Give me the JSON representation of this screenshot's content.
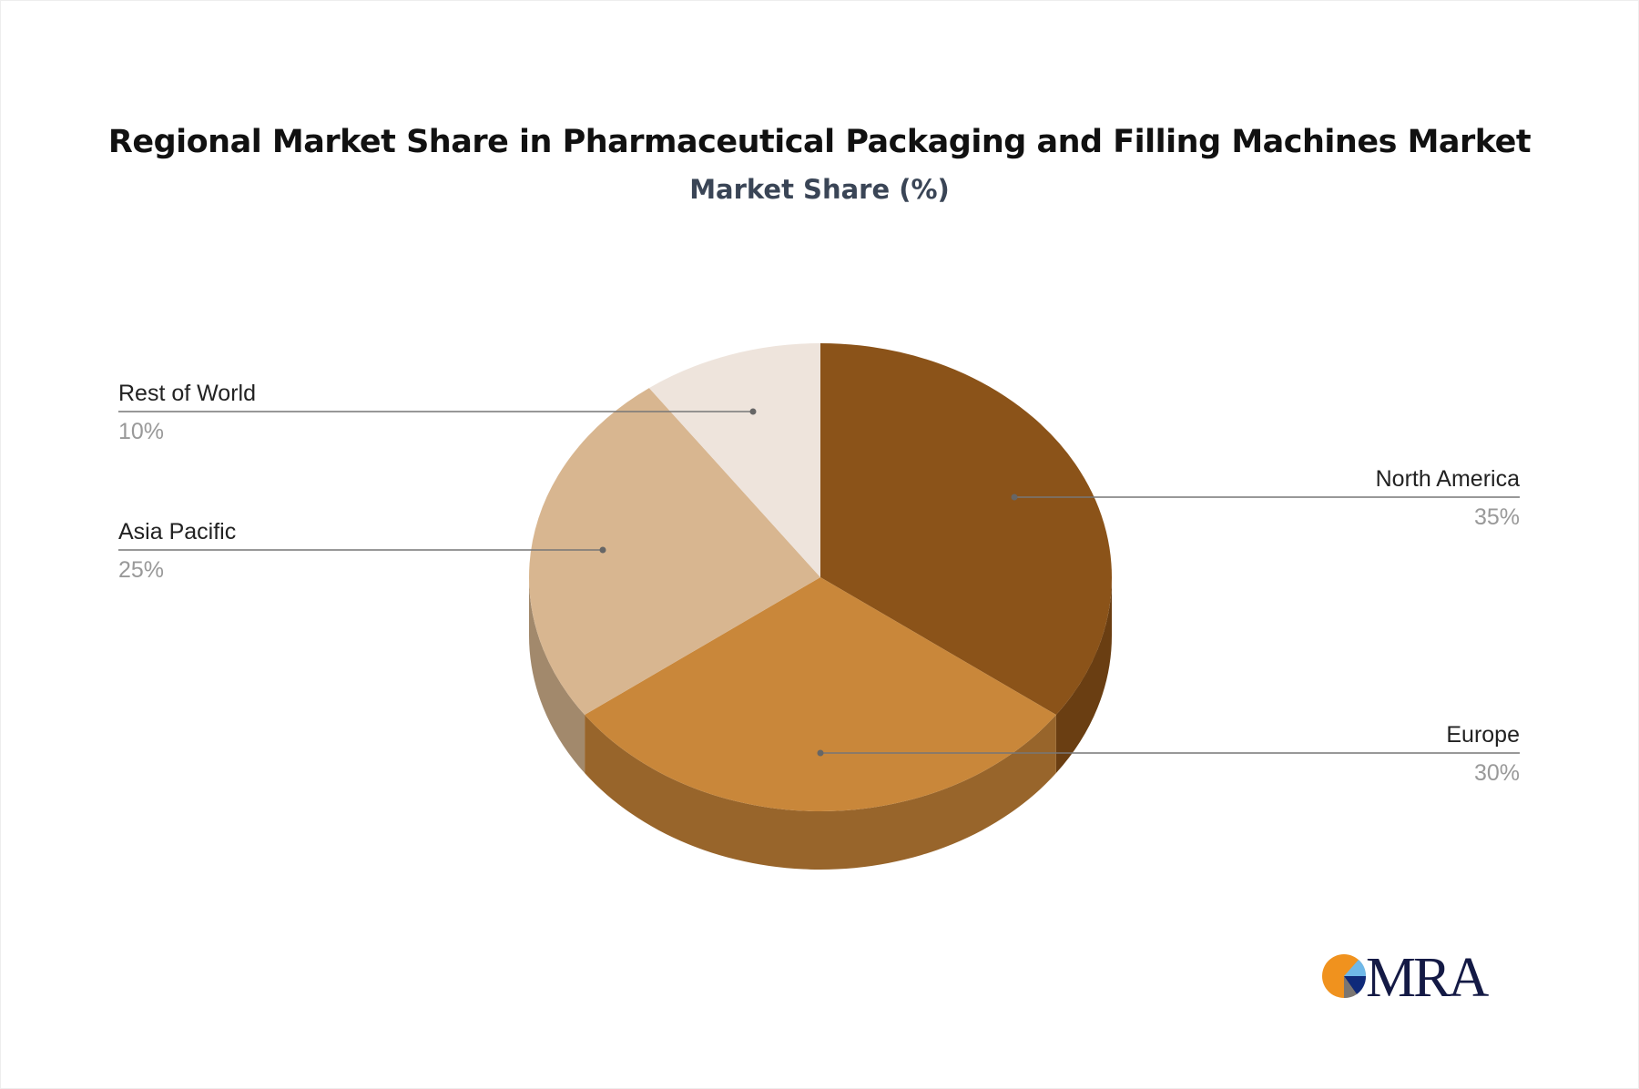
{
  "chart_data": {
    "type": "pie",
    "title": "Regional Market Share in Pharmaceutical Packaging and Filling Machines Market",
    "subtitle": "Market Share (%)",
    "slices": [
      {
        "label": "North America",
        "value": 35,
        "display": "35%",
        "color": "#8B5319",
        "side_color": "#6A3E12"
      },
      {
        "label": "Europe",
        "value": 30,
        "display": "30%",
        "color": "#C9873A",
        "side_color": "#98652B"
      },
      {
        "label": "Asia Pacific",
        "value": 25,
        "display": "25%",
        "color": "#D8B690",
        "side_color": "#A2896C"
      },
      {
        "label": "Rest of World",
        "value": 10,
        "display": "10%",
        "color": "#EEE4DC",
        "side_color": "#BBB2AA"
      }
    ],
    "style": "3d"
  },
  "logo": {
    "text": "MRA",
    "colors": {
      "orange": "#F0921E",
      "light_blue": "#6FB8E8",
      "navy": "#0F2A7A",
      "gray": "#7B7672",
      "text": "#141A45"
    }
  }
}
